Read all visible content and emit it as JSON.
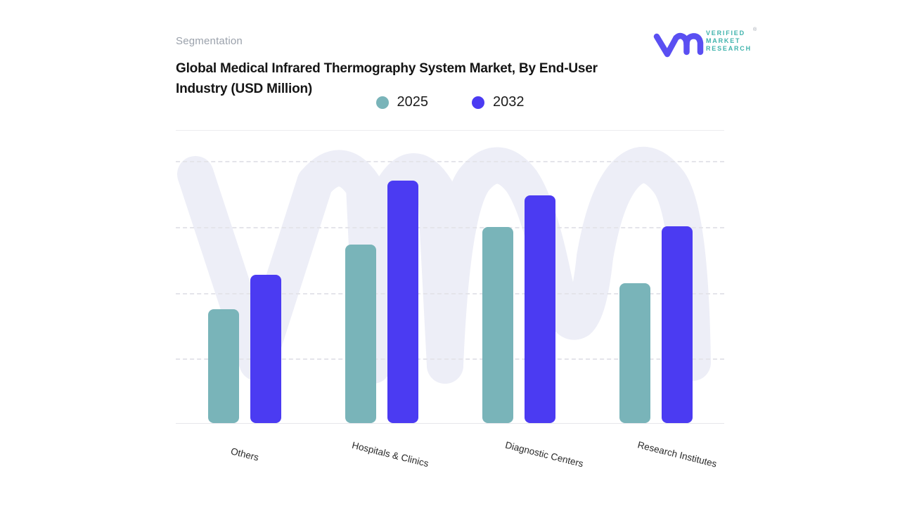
{
  "header": {
    "eyebrow": "Segmentation",
    "title": "Global Medical Infrared Thermography System Market, By End-User Industry (USD Million)"
  },
  "logo": {
    "glyph": "vmr-monogram",
    "glyph_color": "#5a4ff2",
    "text_color": "#3fb3ac",
    "lines": [
      "VERIFIED",
      "MARKET",
      "RESEARCH"
    ],
    "registered": "®"
  },
  "legend": {
    "items": [
      {
        "label": "2025",
        "color": "#79b4b9"
      },
      {
        "label": "2032",
        "color": "#4b3bf2"
      }
    ]
  },
  "chart_data": {
    "type": "bar",
    "title": "Global Medical Infrared Thermography System Market, By End-User Industry (USD Million)",
    "categories": [
      "Others",
      "Hospitals & Clinics",
      "Diagnostic Centers",
      "Research Institutes"
    ],
    "series": [
      {
        "name": "2025",
        "color": "#79b4b9",
        "values": [
          1.73,
          2.71,
          2.98,
          2.12
        ]
      },
      {
        "name": "2032",
        "color": "#4b3bf2",
        "values": [
          2.25,
          3.68,
          3.46,
          2.99
        ]
      }
    ],
    "xlabel": "",
    "ylabel": "",
    "ylim": [
      0,
      4.46
    ],
    "y_gridlines_at": [
      1,
      2,
      3,
      4
    ],
    "grid_style": "horizontal-dashed",
    "y_tick_labels_visible": false,
    "legend_position": "top-center",
    "value_units": "relative scale (y-axis unlabeled in source image)"
  },
  "watermark": {
    "name": "vmr-watermark",
    "color": "#edeef7"
  }
}
